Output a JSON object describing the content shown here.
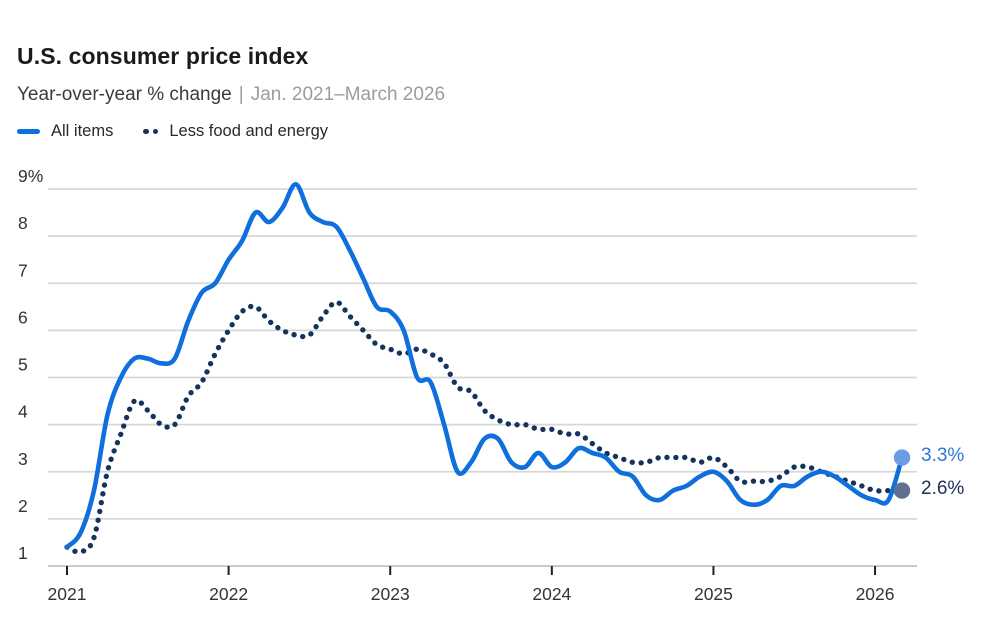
{
  "header": {
    "title": "U.S. consumer price index",
    "subtitle_primary": "Year-over-year % change",
    "subtitle_separator": "|",
    "subtitle_secondary": "Jan. 2021–March 2026"
  },
  "legend": [
    {
      "label": "All items",
      "swatch": "solid-line",
      "color": "#0f6fdc"
    },
    {
      "label": "Less food and energy",
      "swatch": "dotted-line",
      "color": "#14335f"
    }
  ],
  "colors": {
    "all_items_line": "#0f6fdc",
    "core_line": "#14335f",
    "all_items_marker": "#6d9ce4",
    "core_marker": "#5e7193",
    "gridline": "#d7d7d7",
    "axis_line": "#c2c2c2",
    "tick": "#1f1f1f",
    "axis_label": "#333333",
    "end_label_all_items": "#2b79dd",
    "end_label_core": "#1b3055"
  },
  "chart_data": {
    "type": "line",
    "title": "U.S. consumer price index",
    "subtitle": "Year-over-year % change | Jan. 2021–March 2026",
    "x_start": "2021-01",
    "x_interval": "month",
    "n_points": 63,
    "x_tick_labels": [
      "2021",
      "2022",
      "2023",
      "2024",
      "2025",
      "2026"
    ],
    "y_tick_labels": [
      "1",
      "2",
      "3",
      "4",
      "5",
      "6",
      "7",
      "8",
      "9%"
    ],
    "ylim": [
      1,
      9
    ],
    "grid": "horizontal",
    "legend_position": "top",
    "series": [
      {
        "name": "All items",
        "style": "solid",
        "color": "#0f6fdc",
        "marker_color": "#6d9ce4",
        "end_label": "3.3%",
        "last_value": 3.3,
        "values": [
          1.4,
          1.7,
          2.6,
          4.2,
          5.0,
          5.4,
          5.4,
          5.3,
          5.4,
          6.2,
          6.8,
          7.0,
          7.5,
          7.9,
          8.5,
          8.3,
          8.6,
          9.1,
          8.5,
          8.3,
          8.2,
          7.7,
          7.1,
          6.5,
          6.4,
          6.0,
          5.0,
          4.9,
          4.0,
          3.0,
          3.2,
          3.7,
          3.7,
          3.2,
          3.1,
          3.4,
          3.1,
          3.2,
          3.5,
          3.4,
          3.3,
          3.0,
          2.9,
          2.5,
          2.4,
          2.6,
          2.7,
          2.9,
          3.0,
          2.8,
          2.4,
          2.3,
          2.4,
          2.7,
          2.7,
          2.9,
          3.0,
          2.9,
          2.7,
          2.5,
          2.4,
          2.4,
          3.3
        ]
      },
      {
        "name": "Less food and energy",
        "style": "dotted",
        "color": "#14335f",
        "marker_color": "#5e7193",
        "end_label": "2.6%",
        "last_value": 2.6,
        "values": [
          1.4,
          1.3,
          1.6,
          3.0,
          3.8,
          4.5,
          4.3,
          4.0,
          4.0,
          4.6,
          4.9,
          5.5,
          6.0,
          6.4,
          6.5,
          6.2,
          6.0,
          5.9,
          5.9,
          6.3,
          6.6,
          6.3,
          6.0,
          5.7,
          5.6,
          5.5,
          5.6,
          5.5,
          5.3,
          4.8,
          4.7,
          4.3,
          4.1,
          4.0,
          4.0,
          3.9,
          3.9,
          3.8,
          3.8,
          3.6,
          3.4,
          3.3,
          3.2,
          3.2,
          3.3,
          3.3,
          3.3,
          3.2,
          3.3,
          3.1,
          2.8,
          2.8,
          2.8,
          2.9,
          3.1,
          3.1,
          3.0,
          2.9,
          2.8,
          2.7,
          2.6,
          2.6,
          2.6
        ]
      }
    ]
  }
}
